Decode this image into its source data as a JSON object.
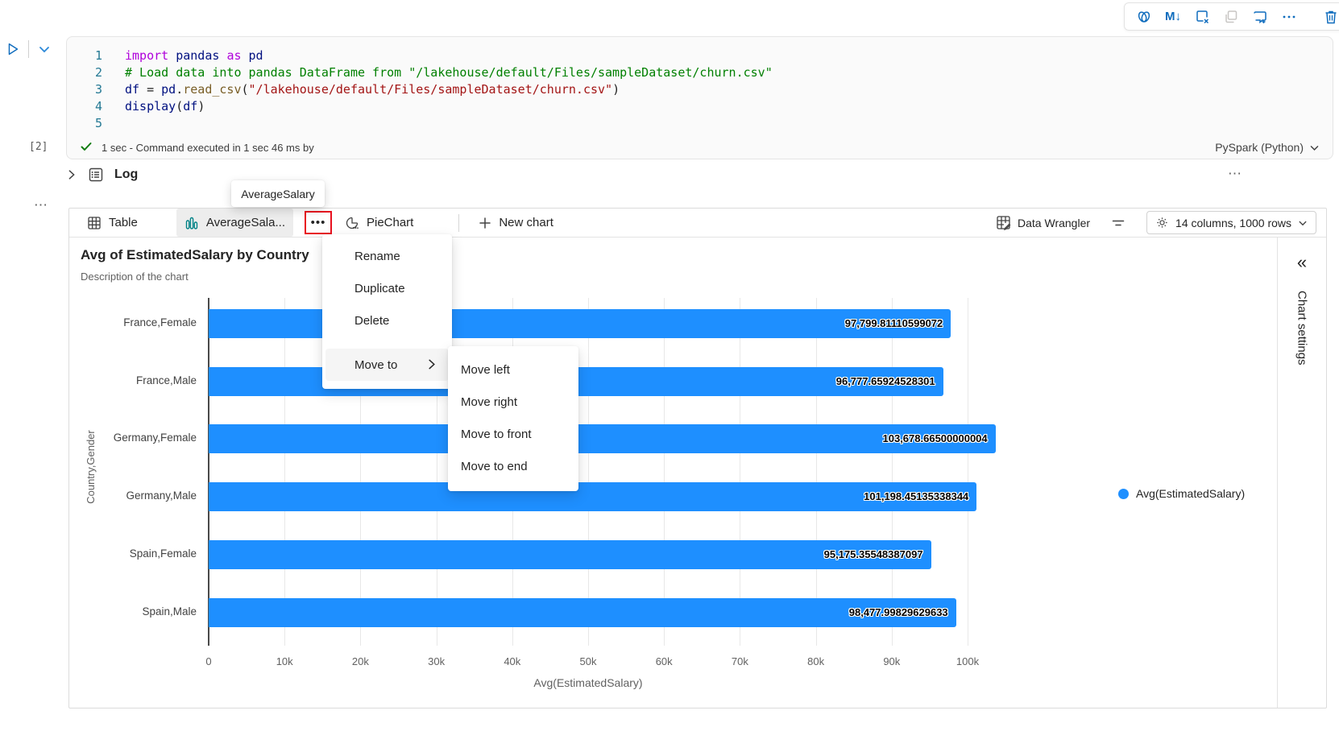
{
  "cell_toolbar": {
    "markdown_label": "M↓"
  },
  "code_cell": {
    "execution_count": "[2]",
    "status_text": "1 sec - Command executed in 1 sec 46 ms by",
    "kernel_label": "PySpark (Python)",
    "lines": [
      {
        "num": "1",
        "tokens": [
          [
            "import",
            "kw"
          ],
          [
            " ",
            "pl"
          ],
          [
            "pandas",
            "mod"
          ],
          [
            " ",
            "pl"
          ],
          [
            "as",
            "kw"
          ],
          [
            " ",
            "pl"
          ],
          [
            "pd",
            "mod"
          ]
        ]
      },
      {
        "num": "2",
        "tokens": [
          [
            "# Load data into pandas DataFrame from \"/lakehouse/default/Files/sampleDataset/churn.csv\"",
            "com"
          ]
        ]
      },
      {
        "num": "3",
        "tokens": [
          [
            "df",
            "mod"
          ],
          [
            " = ",
            "pl"
          ],
          [
            "pd",
            "mod"
          ],
          [
            ".",
            "pl"
          ],
          [
            "read_csv",
            "fn"
          ],
          [
            "(",
            "pl"
          ],
          [
            "\"/lakehouse/default/Files/sampleDataset/churn.csv\"",
            "str"
          ],
          [
            ")",
            "pl"
          ]
        ]
      },
      {
        "num": "4",
        "tokens": [
          [
            "display",
            "mod"
          ],
          [
            "(",
            "pl"
          ],
          [
            "df",
            "mod"
          ],
          [
            ")",
            "pl"
          ]
        ]
      },
      {
        "num": "5",
        "tokens": []
      }
    ]
  },
  "log_section": {
    "label": "Log",
    "more": "⋯"
  },
  "left_more": "⋯",
  "tooltip": {
    "text": "AverageSalary"
  },
  "tab_bar": {
    "table_label": "Table",
    "active_label": "AverageSala...",
    "more_label": "•••",
    "pie_label": "PieChart",
    "new_label": "New chart",
    "data_wrangler_label": "Data Wrangler",
    "columns_label": "14 columns, 1000 rows"
  },
  "context_menu": {
    "items": [
      "Rename",
      "Duplicate",
      "Delete"
    ],
    "move_to_label": "Move to",
    "submenu": [
      "Move left",
      "Move right",
      "Move to front",
      "Move to end"
    ]
  },
  "chart_settings": {
    "label": "Chart settings",
    "collapse_glyph": "«"
  },
  "chart_data": {
    "type": "bar",
    "orientation": "horizontal",
    "title": "Avg of EstimatedSalary by Country",
    "subtitle": "Description of the chart",
    "categories": [
      "France,Female",
      "France,Male",
      "Germany,Female",
      "Germany,Male",
      "Spain,Female",
      "Spain,Male"
    ],
    "values": [
      97799.81110599072,
      96777.65924528301,
      103678.66500000004,
      101198.45135338344,
      95175.35548387097,
      98477.99829629633
    ],
    "value_labels": [
      "97,799.81110599072",
      "96,777.65924528301",
      "103,678.66500000004",
      "101,198.45135338344",
      "95,175.35548387097",
      "98,477.99829629633"
    ],
    "xlabel": "Avg(EstimatedSalary)",
    "ylabel": "Country,Gender",
    "xticks": [
      "0",
      "10k",
      "20k",
      "30k",
      "40k",
      "50k",
      "60k",
      "70k",
      "80k",
      "90k",
      "100k"
    ],
    "xlim": [
      0,
      100000
    ],
    "grid": true,
    "bar_color": "#1e8fff",
    "legend": {
      "label": "Avg(EstimatedSalary)",
      "color": "#1e8fff",
      "position": "right"
    }
  }
}
